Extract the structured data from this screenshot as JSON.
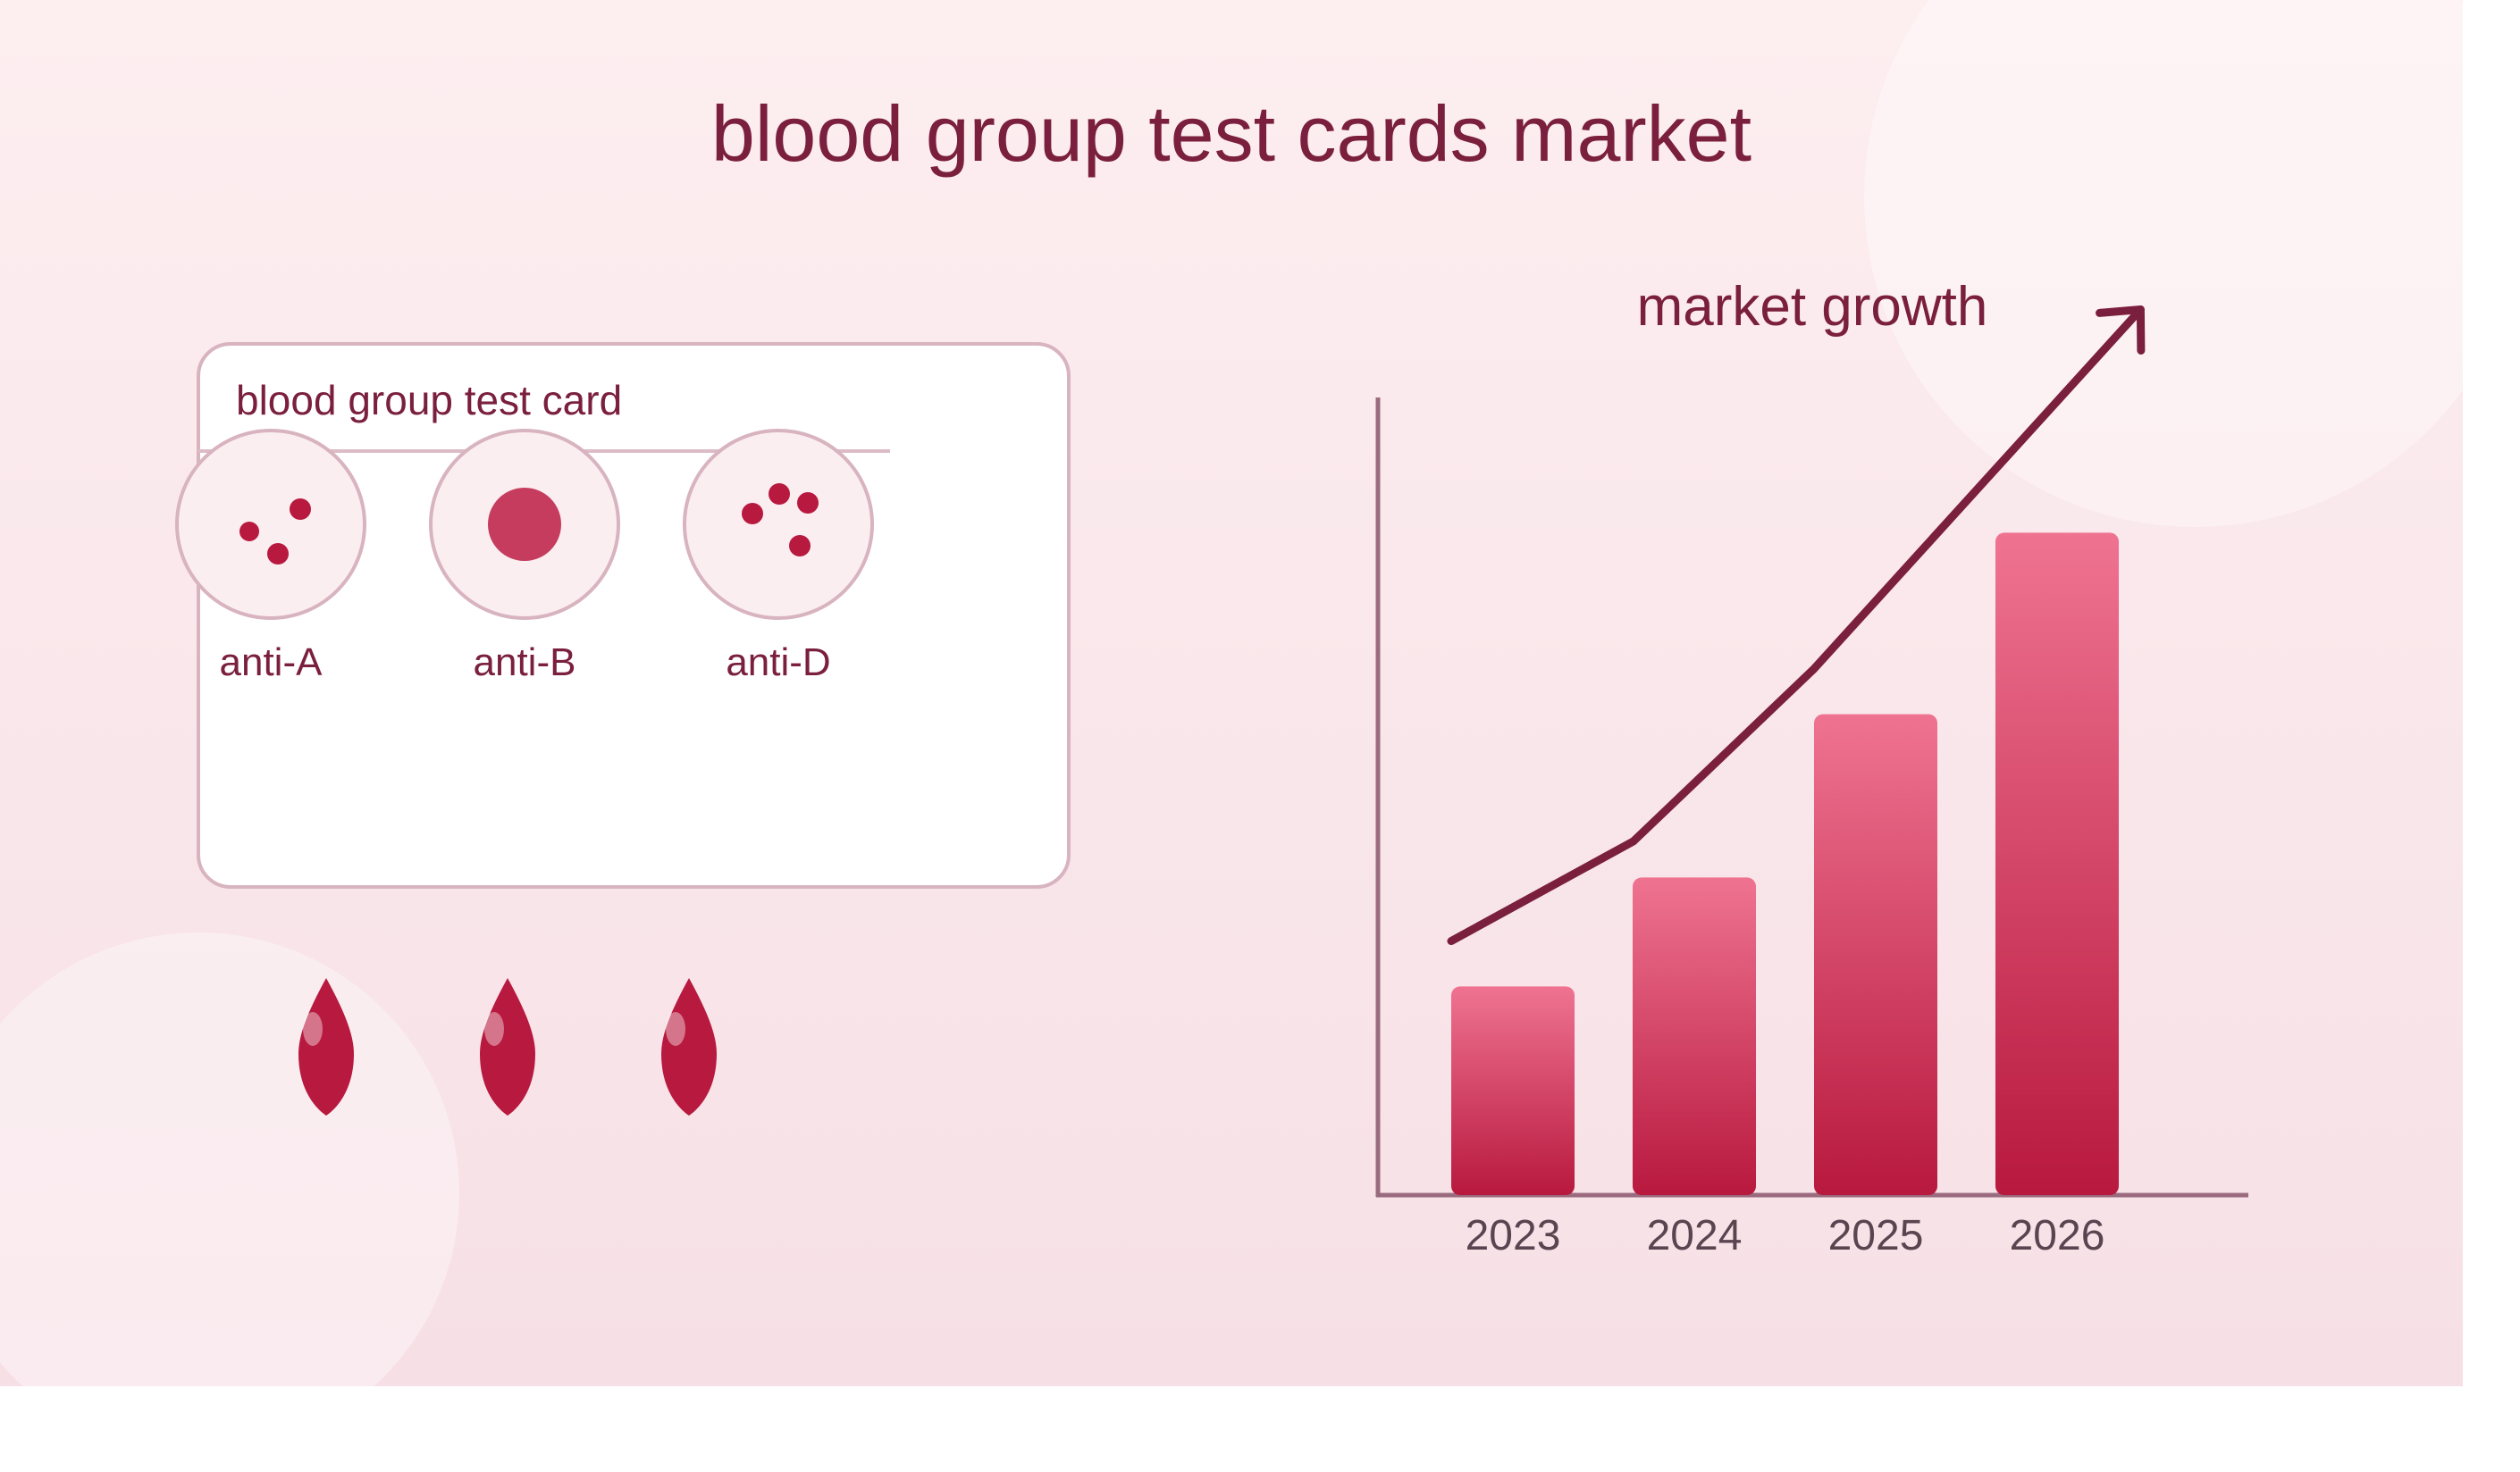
{
  "title": "blood group test cards market",
  "card": {
    "title": "blood group test card",
    "wells": [
      {
        "label": "anti-A",
        "pattern": "scattered-dots"
      },
      {
        "label": "anti-B",
        "pattern": "agglutinated"
      },
      {
        "label": "anti-D",
        "pattern": "scattered-dots"
      }
    ]
  },
  "drops": [
    "blood-drop-icon",
    "blood-drop-icon",
    "blood-drop-icon"
  ],
  "colors": {
    "accent": "#7a1f3d",
    "blood": "#b8193e",
    "bar_top": "#ef7391",
    "bar_bottom": "#b8193e",
    "background_top": "#fdeef0",
    "background_bottom": "#f6e0e6"
  },
  "chart_data": {
    "type": "bar",
    "title": "market growth",
    "categories": [
      "2023",
      "2024",
      "2025",
      "2026"
    ],
    "values": [
      23,
      35,
      53,
      73
    ],
    "trend_line": [
      28,
      39,
      58,
      80
    ],
    "ylim": [
      0,
      88
    ],
    "grid": false,
    "legend": "none"
  }
}
